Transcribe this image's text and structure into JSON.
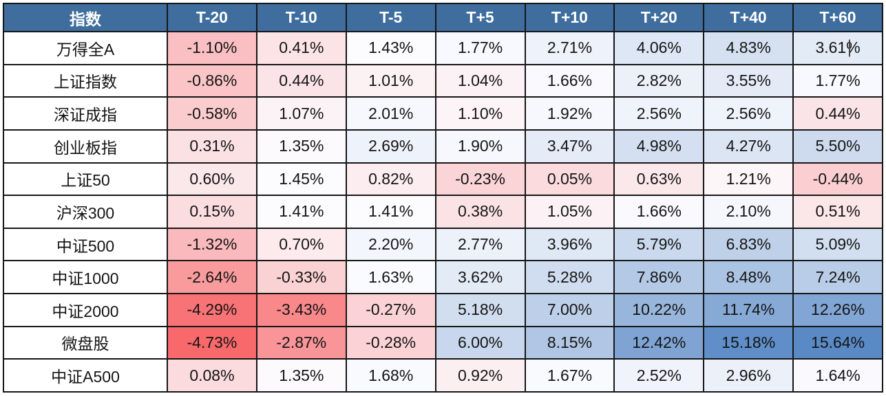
{
  "colors": {
    "page_bg": "#FFFFFF",
    "header_bg": "#3E6D9E",
    "header_text": "#FFFFFF",
    "border": "#161616",
    "cell_text": "#141414",
    "scale_min_color": "#F8696B",
    "scale_mid_color": "#FCFCFF",
    "scale_max_color": "#5A8AC6"
  },
  "chart_data": {
    "type": "heatmap",
    "row_header_label": "指数",
    "columns": [
      "T-20",
      "T-10",
      "T-5",
      "T+5",
      "T+10",
      "T+20",
      "T+40",
      "T+60"
    ],
    "rows": [
      "万得全A",
      "上证指数",
      "深证成指",
      "创业板指",
      "上证50",
      "沪深300",
      "中证500",
      "中证1000",
      "中证2000",
      "微盘股",
      "中证A500"
    ],
    "values": [
      [
        -1.1,
        0.41,
        1.43,
        1.77,
        2.71,
        4.06,
        4.83,
        3.61
      ],
      [
        -0.86,
        0.44,
        1.01,
        1.04,
        1.66,
        2.82,
        3.55,
        1.77
      ],
      [
        -0.58,
        1.07,
        2.01,
        1.1,
        1.92,
        2.56,
        2.56,
        0.44
      ],
      [
        0.31,
        1.35,
        2.69,
        1.9,
        3.47,
        4.98,
        4.27,
        5.5
      ],
      [
        0.6,
        1.45,
        0.82,
        -0.23,
        0.05,
        0.63,
        1.21,
        -0.44
      ],
      [
        0.15,
        1.41,
        1.41,
        0.38,
        1.05,
        1.66,
        2.1,
        0.51
      ],
      [
        -1.32,
        0.7,
        2.2,
        2.77,
        3.96,
        5.79,
        6.83,
        5.09
      ],
      [
        -2.64,
        -0.33,
        1.63,
        3.62,
        5.28,
        7.86,
        8.48,
        7.24
      ],
      [
        -4.29,
        -3.43,
        -0.27,
        5.18,
        7.0,
        10.22,
        11.74,
        12.26
      ],
      [
        -4.73,
        -2.87,
        -0.28,
        6.0,
        8.15,
        12.42,
        15.18,
        15.64
      ],
      [
        0.08,
        1.35,
        1.68,
        0.92,
        1.67,
        2.52,
        2.96,
        1.64
      ]
    ],
    "value_unit": "%",
    "value_decimals": 2,
    "color_scale": {
      "min_value": -4.73,
      "mid_value": 1.45,
      "max_value": 15.64
    },
    "legend_position": "none",
    "grid": true
  },
  "cursor_artifact": {
    "row_index": 0,
    "col_index": 7
  }
}
